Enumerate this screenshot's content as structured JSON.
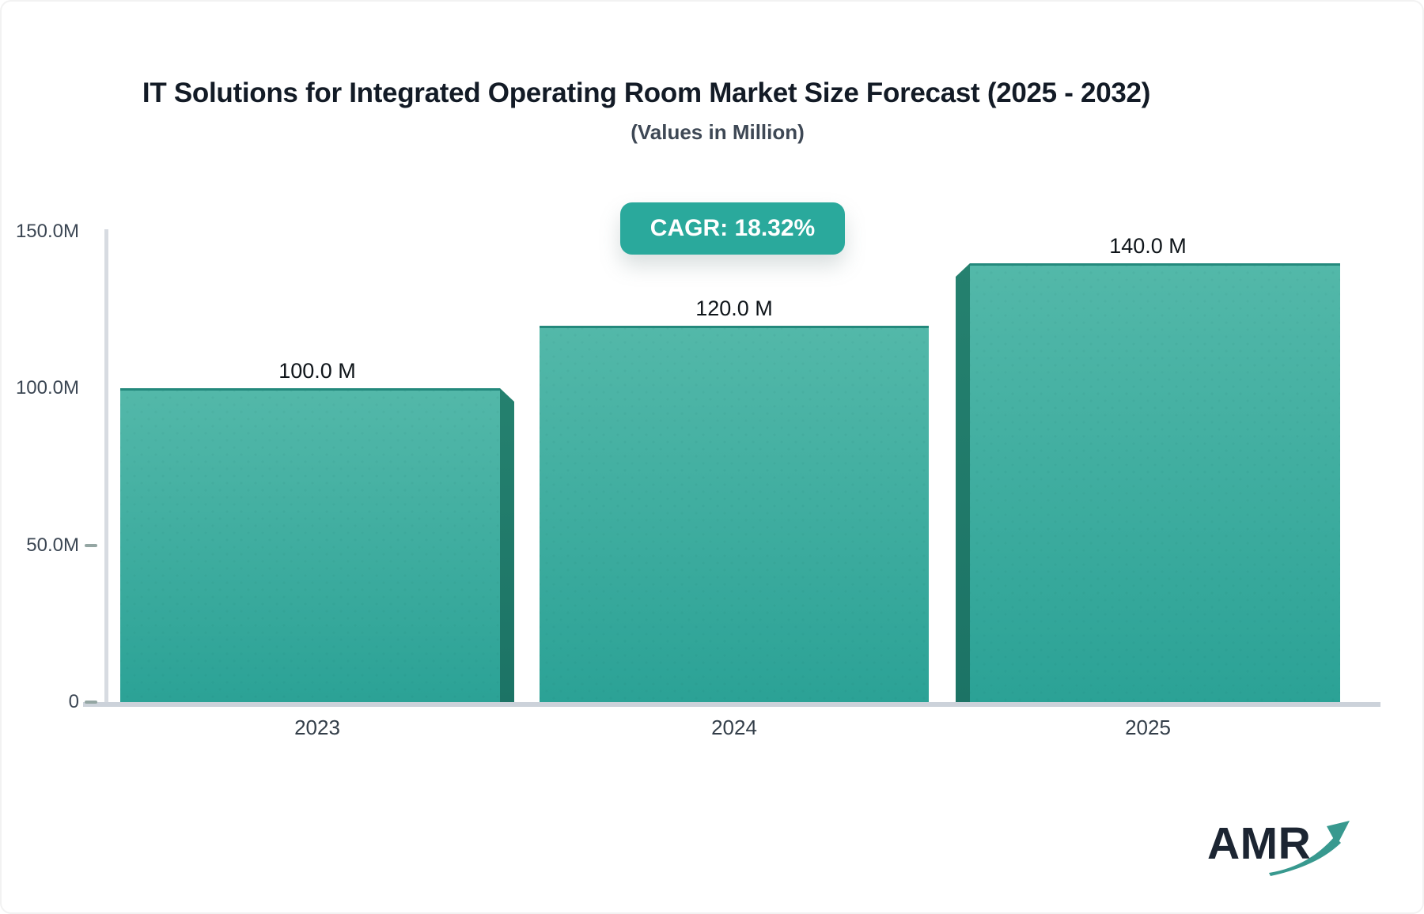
{
  "header": {
    "title": "IT Solutions for Integrated Operating Room Market Size Forecast (2025 - 2032)",
    "subtitle": "(Values in Million)"
  },
  "badge": {
    "label": "CAGR: 18.32%"
  },
  "chart_data": {
    "type": "bar",
    "title": "IT Solutions for Integrated Operating Room Market Size Forecast (2025 - 2032)",
    "subtitle": "(Values in Million)",
    "unit": "Million",
    "cagr": "18.32%",
    "categories": [
      "2023",
      "2024",
      "2025"
    ],
    "values": [
      100.0,
      120.0,
      140.0
    ],
    "bar_labels": [
      "100.0 M",
      "120.0 M",
      "140.0 M"
    ],
    "yticks": [
      {
        "value": 0,
        "label": "0",
        "dash": true
      },
      {
        "value": 50,
        "label": "50.0M",
        "dash": true
      },
      {
        "value": 100,
        "label": "100.0M",
        "dash": false
      },
      {
        "value": 150,
        "label": "150.0M",
        "dash": false
      }
    ],
    "ylim": [
      0,
      150
    ],
    "xlabel": "",
    "ylabel": "",
    "grid": false,
    "legend": false,
    "colors": {
      "bar_top": "#53b8a9",
      "bar_bottom": "#2ba296",
      "bar_edge": "#24897c",
      "bar_side_top": "#25816f",
      "bar_side_bottom": "#1c7365",
      "badge_bg": "#2aa99c",
      "axis_line": "#d7dbe1",
      "baseline": "#ccd2da",
      "logo_navy": "#1c2532",
      "logo_arrow": "#38998f"
    }
  },
  "logo": {
    "text": "AMR",
    "icon": "trend-up-arrow-icon"
  }
}
